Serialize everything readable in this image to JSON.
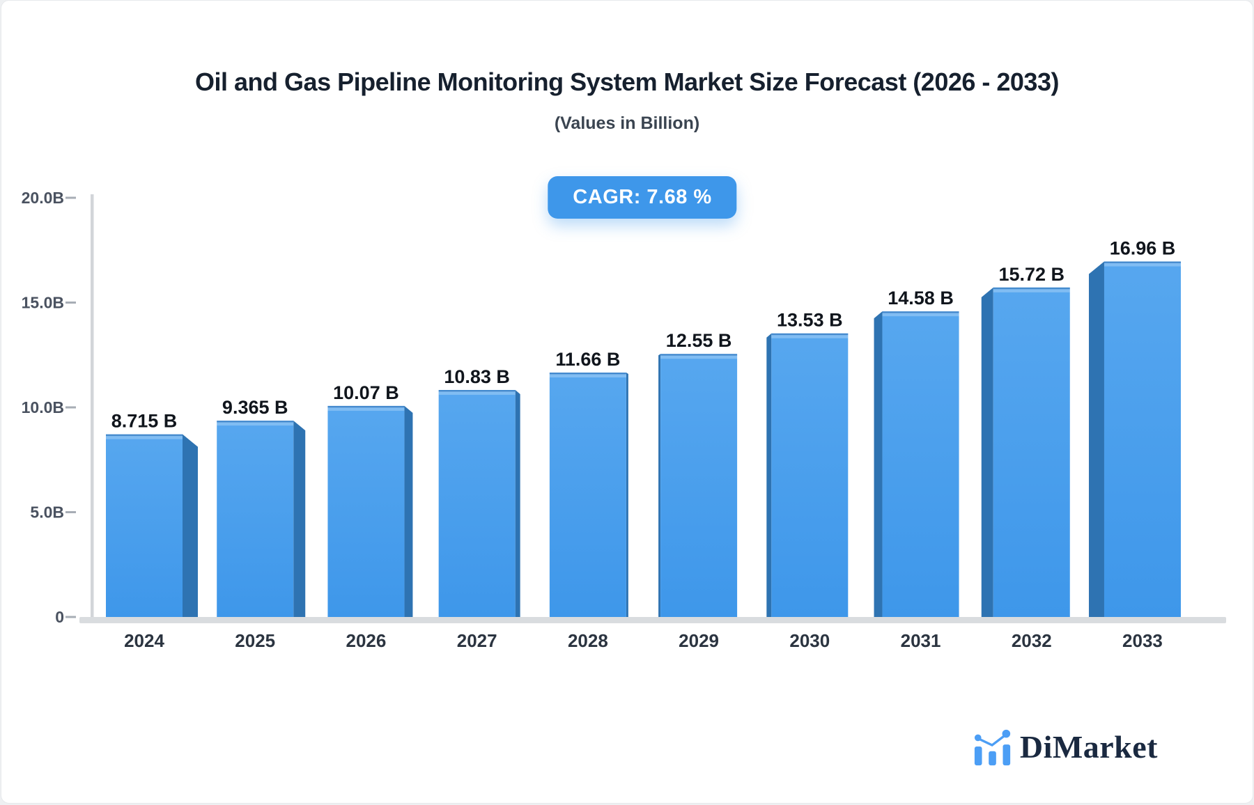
{
  "header": {
    "title": "Oil and Gas Pipeline Monitoring System Market Size Forecast (2026 - 2033)",
    "subtitle": "(Values in Billion)"
  },
  "badge": {
    "label": "CAGR: 7.68 %"
  },
  "chart_data": {
    "type": "bar",
    "title": "Oil and Gas Pipeline Monitoring System Market Size Forecast (2026 - 2033)",
    "subtitle": "(Values in Billion)",
    "unit": "Billion",
    "categories": [
      "2024",
      "2025",
      "2026",
      "2027",
      "2028",
      "2029",
      "2030",
      "2031",
      "2032",
      "2033"
    ],
    "values": [
      8.715,
      9.365,
      10.07,
      10.83,
      11.66,
      12.55,
      13.53,
      14.58,
      15.72,
      16.96
    ],
    "value_labels": [
      "8.715 B",
      "9.365 B",
      "10.07 B",
      "10.83 B",
      "11.66 B",
      "12.55 B",
      "13.53 B",
      "14.58 B",
      "15.72 B",
      "16.96 B"
    ],
    "yticks": [
      {
        "label": "20.0B",
        "value": 20
      },
      {
        "label": "15.0B",
        "value": 15
      },
      {
        "label": "10.0B",
        "value": 10
      },
      {
        "label": "5.0B",
        "value": 5
      },
      {
        "label": "0",
        "value": 0
      }
    ],
    "ylim": [
      0,
      20
    ],
    "grid": false,
    "legend": "none",
    "cagr": "7.68 %",
    "colors": {
      "bar_face_top": "#57a7ef",
      "bar_face_bottom": "#3e97ea",
      "bar_side": "#2e73b2",
      "bar_top_edge": "rgba(21,74,138,0.32)",
      "bar_top_highlight": "rgba(255,255,255,0.25)",
      "axis_line": "#d2d5d9",
      "floor": "#d9dcdf",
      "tick_dash": "#a7adb5",
      "tick_text": "#4a5260",
      "year_text": "#2b3440",
      "value_text": "#10151c",
      "badge_bg": "#3e97ea"
    }
  },
  "logo": {
    "brand": "DiMarket",
    "icon": "bar-chart-logo-icon",
    "icon_color": "#4c9ef5"
  }
}
